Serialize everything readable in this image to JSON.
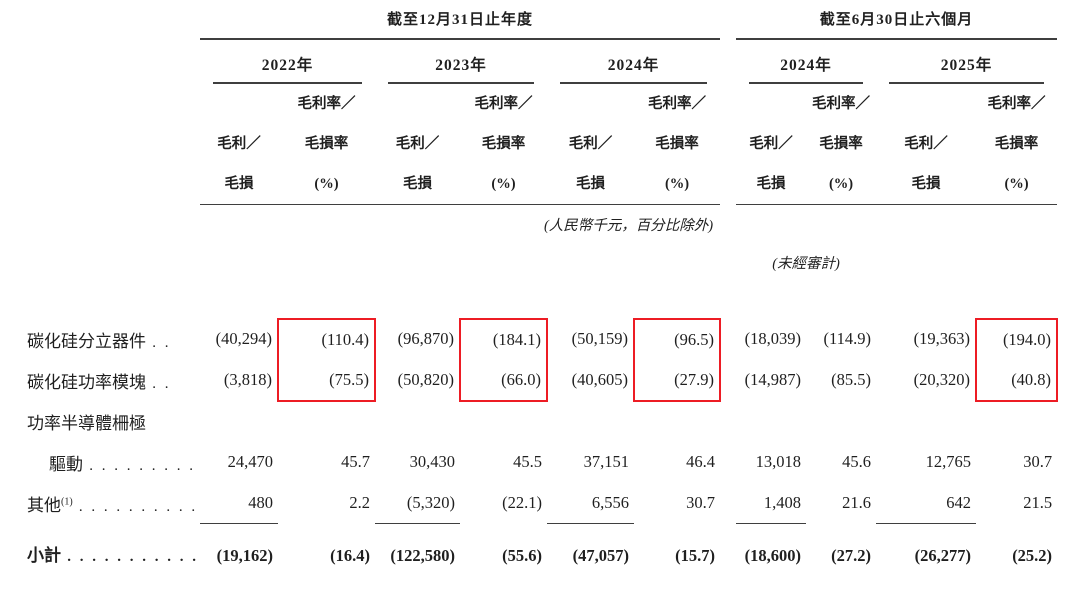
{
  "colors": {
    "box_red": "#ed1c24",
    "rule": "#3f3f3f",
    "ink": "#1f1f1f"
  },
  "table": {
    "group_headers": [
      {
        "label": "截至12月31日止年度"
      },
      {
        "label": "截至6月30日止六個月"
      }
    ],
    "years": [
      "2022年",
      "2023年",
      "2024年",
      "2024年",
      "2025年"
    ],
    "col_headers": {
      "amount": [
        "毛利／",
        "毛損"
      ],
      "pct": [
        "毛利率／",
        "毛損率",
        "(%)"
      ]
    },
    "notes": {
      "units": "(人民幣千元，百分比除外)",
      "unaudited": "(未經審計)"
    },
    "boxed_value_cols": [
      1,
      3,
      5,
      9
    ],
    "boxed_row_indexes": [
      0,
      1
    ],
    "rows": [
      {
        "label": "碳化硅分立器件",
        "dots": " . .",
        "values": [
          "(40,294)",
          "(110.4)",
          "(96,870)",
          "(184.1)",
          "(50,159)",
          "(96.5)",
          "(18,039)",
          "(114.9)",
          "(19,363)",
          "(194.0)"
        ]
      },
      {
        "label": "碳化硅功率模塊",
        "dots": " . .",
        "values": [
          "(3,818)",
          "(75.5)",
          "(50,820)",
          "(66.0)",
          "(40,605)",
          "(27.9)",
          "(14,987)",
          "(85.5)",
          "(20,320)",
          "(40.8)"
        ]
      },
      {
        "label": "功率半導體柵極",
        "dots": "",
        "values": [
          "",
          "",
          "",
          "",
          "",
          "",
          "",
          "",
          "",
          ""
        ]
      },
      {
        "label": "驅動",
        "dots": " . . . . . . . . .",
        "indent": true,
        "values": [
          "24,470",
          "45.7",
          "30,430",
          "45.5",
          "37,151",
          "46.4",
          "13,018",
          "45.6",
          "12,765",
          "30.7"
        ]
      },
      {
        "label": "其他",
        "sup": "(1)",
        "dots": " . . . . . . . . . .",
        "amount_rule_below": true,
        "values": [
          "480",
          "2.2",
          "(5,320)",
          "(22.1)",
          "6,556",
          "30.7",
          "1,408",
          "21.6",
          "642",
          "21.5"
        ]
      },
      {
        "label": "小計",
        "dots": " . . . . . . . . . . .",
        "bold": true,
        "last": true,
        "values": [
          "(19,162)",
          "(16.4)",
          "(122,580)",
          "(55.6)",
          "(47,057)",
          "(15.7)",
          "(18,600)",
          "(27.2)",
          "(26,277)",
          "(25.2)"
        ]
      }
    ]
  }
}
